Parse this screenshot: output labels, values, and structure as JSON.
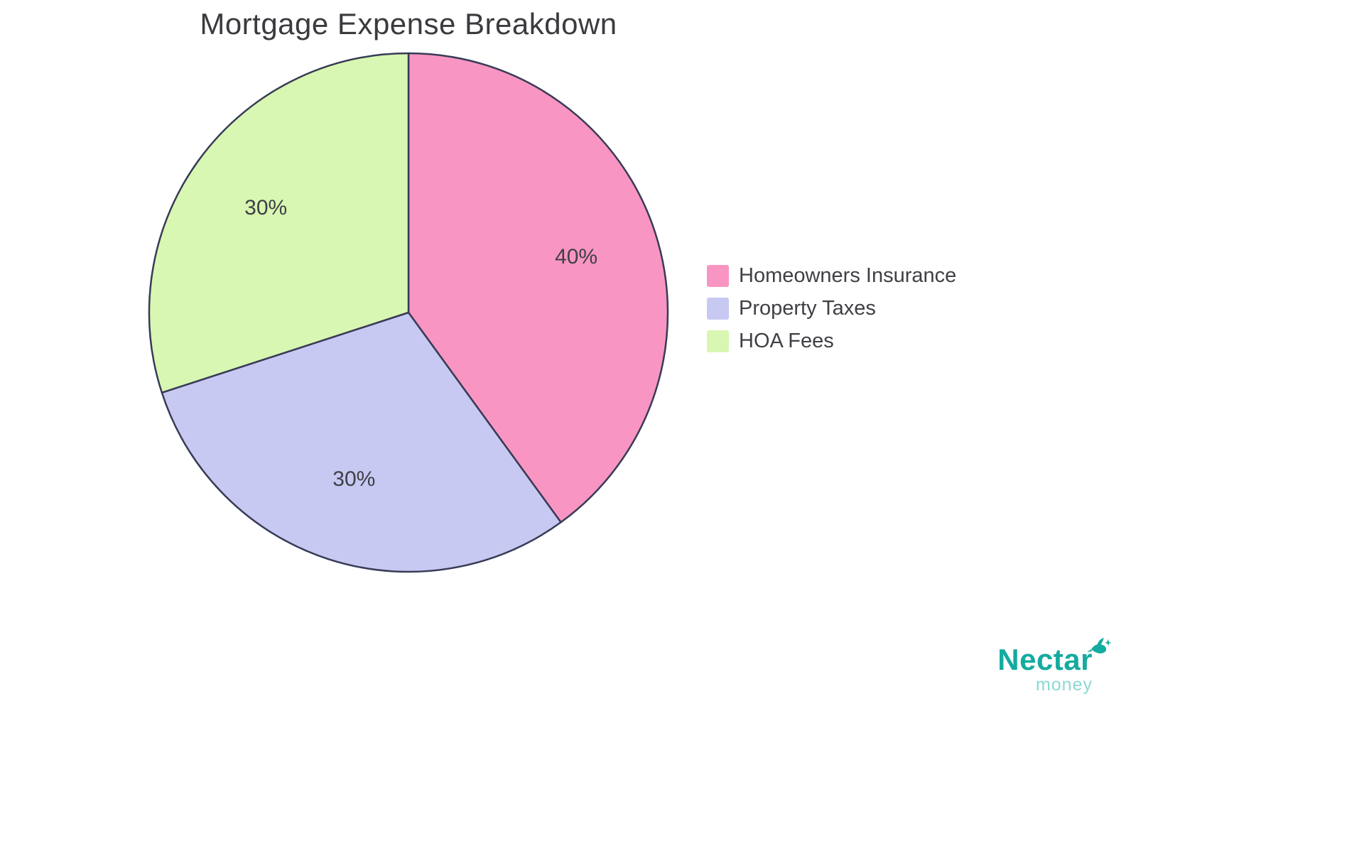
{
  "chart_data": {
    "type": "pie",
    "title": "Mortgage Expense Breakdown",
    "labels": [
      "Homeowners Insurance",
      "Property Taxes",
      "HOA Fees"
    ],
    "values": [
      40,
      30,
      30
    ],
    "value_labels": [
      "40%",
      "30%",
      "30%"
    ],
    "colors": [
      "#F995C3",
      "#C7C9F2",
      "#D8F7B2"
    ],
    "stroke_color": "#383B56",
    "stroke_width": 2.5,
    "start_angle_deg": 0,
    "direction": "clockwise",
    "label_radius_ratio": 0.68,
    "legend_position": "right",
    "legend_on": true,
    "grid": false
  },
  "branding": {
    "name": "Nectar",
    "subtitle": "money",
    "name_color": "#14ABA0",
    "subtitle_color": "#8BD9D1"
  }
}
